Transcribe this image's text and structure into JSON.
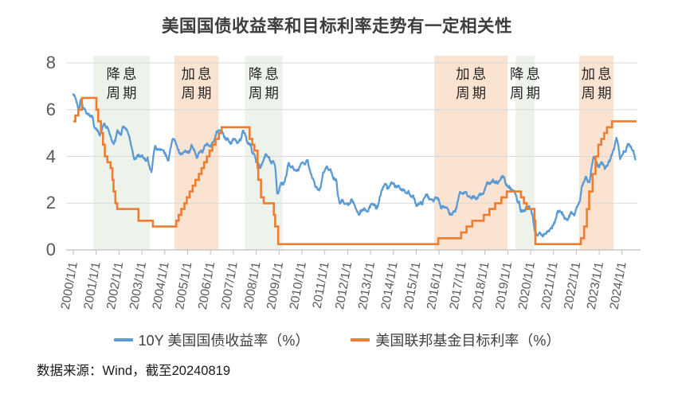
{
  "title": "美国国债收益率和目标利率走势有一定相关性",
  "source_note": "数据来源：Wind，截至20240819",
  "colors": {
    "treasury_line": "#5B9BD5",
    "target_rate_line": "#ED7D31",
    "cut_band": "#EDF2EA",
    "hike_band": "#FBE3D1",
    "grid": "#d9d9d9",
    "axis": "#bfbfbf",
    "tick_label": "#595959",
    "band_label": "#262626"
  },
  "chart_data": {
    "type": "line",
    "title": "美国国债收益率和目标利率走势有一定相关性",
    "xlabel": "",
    "ylabel": "",
    "ylim": [
      0,
      8
    ],
    "y_ticks": [
      0,
      2,
      4,
      6,
      8
    ],
    "x_ticklabels": [
      "2000/1/1",
      "2001/1/1",
      "2002/1/1",
      "2003/1/1",
      "2004/1/1",
      "2005/1/1",
      "2006/1/1",
      "2007/1/1",
      "2008/1/1",
      "2009/1/1",
      "2010/1/1",
      "2011/1/1",
      "2012/1/1",
      "2013/1/1",
      "2014/1/1",
      "2015/1/1",
      "2016/1/1",
      "2017/1/1",
      "2018/1/1",
      "2019/1/1",
      "2020/1/1",
      "2021/1/1",
      "2022/1/1",
      "2023/1/1",
      "2024/1/1"
    ],
    "grid": "horizontal",
    "legend_position": "bottom",
    "bands": [
      {
        "kind": "cut",
        "lines": [
          "降息",
          "周期"
        ],
        "start": 2000.87,
        "end": 2003.35
      },
      {
        "kind": "hike",
        "lines": [
          "加息",
          "周期"
        ],
        "start": 2004.42,
        "end": 2006.35
      },
      {
        "kind": "cut",
        "lines": [
          "降息",
          "周期"
        ],
        "start": 2007.5,
        "end": 2009.15
      },
      {
        "kind": "hike",
        "lines": [
          "加息",
          "周期"
        ],
        "start": 2015.79,
        "end": 2018.99
      },
      {
        "kind": "cut",
        "lines": [
          "降息",
          "周期"
        ],
        "start": 2019.34,
        "end": 2020.17
      },
      {
        "kind": "hike",
        "lines": [
          "加息",
          "周期"
        ],
        "start": 2022.13,
        "end": 2023.63
      }
    ],
    "series": [
      {
        "name": "10Y 美国国债收益率（%）",
        "color": "#5B9BD5",
        "style": "noisy-line",
        "start_year": 2000,
        "interval": "monthly",
        "values": [
          6.66,
          6.52,
          6.26,
          6.0,
          6.44,
          6.1,
          6.05,
          5.83,
          5.8,
          5.74,
          5.72,
          5.24,
          5.16,
          5.1,
          4.89,
          5.14,
          5.39,
          5.28,
          5.24,
          4.97,
          4.73,
          4.57,
          4.65,
          5.09,
          5.04,
          4.91,
          5.28,
          5.21,
          5.16,
          4.93,
          4.65,
          4.26,
          3.87,
          3.94,
          4.05,
          4.03,
          4.05,
          3.9,
          3.81,
          3.96,
          3.57,
          3.33,
          3.98,
          4.45,
          4.27,
          4.29,
          4.3,
          4.27,
          4.15,
          3.97,
          3.83,
          4.35,
          4.72,
          4.73,
          4.5,
          4.28,
          4.13,
          4.1,
          4.19,
          4.23,
          4.22,
          4.17,
          4.5,
          4.34,
          4.14,
          3.94,
          4.18,
          4.26,
          4.2,
          4.46,
          4.54,
          4.47,
          4.42,
          4.57,
          4.72,
          4.99,
          5.11,
          5.11,
          5.09,
          4.88,
          4.72,
          4.73,
          4.6,
          4.56,
          4.76,
          4.72,
          4.56,
          4.69,
          4.75,
          5.1,
          5.0,
          4.67,
          4.52,
          4.53,
          4.15,
          4.1,
          3.74,
          3.74,
          3.51,
          3.68,
          3.88,
          4.1,
          3.99,
          3.89,
          3.69,
          3.81,
          3.53,
          2.42,
          2.52,
          2.87,
          2.82,
          2.93,
          3.29,
          3.72,
          3.56,
          3.59,
          3.4,
          3.39,
          3.4,
          3.59,
          3.73,
          3.69,
          3.73,
          3.85,
          3.42,
          3.2,
          3.01,
          2.7,
          2.65,
          2.54,
          2.76,
          3.29,
          3.39,
          3.58,
          3.41,
          3.46,
          3.17,
          3.0,
          3.0,
          2.3,
          1.98,
          2.15,
          2.01,
          1.98,
          1.97,
          1.97,
          2.17,
          2.05,
          1.8,
          1.62,
          1.53,
          1.68,
          1.72,
          1.75,
          1.65,
          1.72,
          1.91,
          1.98,
          1.96,
          1.76,
          1.93,
          2.3,
          2.58,
          2.74,
          2.81,
          2.62,
          2.72,
          2.9,
          2.86,
          2.71,
          2.72,
          2.71,
          2.56,
          2.6,
          2.54,
          2.42,
          2.53,
          2.3,
          2.33,
          2.21,
          1.88,
          1.98,
          2.04,
          1.94,
          2.2,
          2.36,
          2.32,
          2.17,
          2.17,
          2.07,
          2.26,
          2.24,
          2.09,
          1.78,
          1.89,
          1.81,
          1.81,
          1.64,
          1.5,
          1.56,
          1.63,
          1.76,
          2.14,
          2.49,
          2.43,
          2.42,
          2.48,
          2.3,
          2.3,
          2.19,
          2.32,
          2.21,
          2.2,
          2.36,
          2.35,
          2.4,
          2.58,
          2.86,
          2.84,
          2.87,
          2.98,
          2.91,
          2.89,
          2.89,
          3.0,
          3.15,
          3.12,
          2.83,
          2.71,
          2.68,
          2.57,
          2.53,
          2.4,
          2.07,
          2.07,
          1.63,
          1.7,
          1.71,
          1.81,
          1.86,
          1.76,
          1.5,
          0.87,
          0.66,
          0.67,
          0.73,
          0.62,
          0.65,
          0.68,
          0.79,
          0.87,
          0.93,
          1.08,
          1.26,
          1.61,
          1.64,
          1.62,
          1.52,
          1.32,
          1.28,
          1.37,
          1.58,
          1.56,
          1.47,
          1.76,
          1.93,
          2.13,
          2.75,
          2.9,
          3.14,
          2.9,
          2.9,
          3.52,
          3.98,
          3.89,
          3.62,
          3.53,
          3.75,
          3.66,
          3.46,
          3.57,
          3.75,
          3.9,
          4.17,
          4.38,
          4.8,
          4.5,
          3.88,
          4.06,
          4.21,
          4.21,
          4.54,
          4.48,
          4.31,
          4.25,
          3.87
        ]
      },
      {
        "name": "美国联邦基金目标利率（%）",
        "color": "#ED7D31",
        "style": "step",
        "points": [
          [
            2000.0,
            5.5
          ],
          [
            2000.09,
            5.75
          ],
          [
            2000.22,
            6.0
          ],
          [
            2000.38,
            6.5
          ],
          [
            2001.01,
            6.0
          ],
          [
            2001.09,
            5.5
          ],
          [
            2001.21,
            5.0
          ],
          [
            2001.3,
            4.5
          ],
          [
            2001.38,
            4.0
          ],
          [
            2001.49,
            3.75
          ],
          [
            2001.63,
            3.5
          ],
          [
            2001.71,
            3.0
          ],
          [
            2001.76,
            2.5
          ],
          [
            2001.84,
            2.0
          ],
          [
            2001.92,
            1.75
          ],
          [
            2002.85,
            1.25
          ],
          [
            2003.48,
            1.0
          ],
          [
            2004.5,
            1.25
          ],
          [
            2004.61,
            1.5
          ],
          [
            2004.72,
            1.75
          ],
          [
            2004.86,
            2.0
          ],
          [
            2004.96,
            2.25
          ],
          [
            2005.09,
            2.5
          ],
          [
            2005.22,
            2.75
          ],
          [
            2005.34,
            3.0
          ],
          [
            2005.49,
            3.25
          ],
          [
            2005.61,
            3.5
          ],
          [
            2005.72,
            3.75
          ],
          [
            2005.84,
            4.0
          ],
          [
            2005.96,
            4.25
          ],
          [
            2006.08,
            4.5
          ],
          [
            2006.22,
            4.75
          ],
          [
            2006.37,
            5.0
          ],
          [
            2006.49,
            5.25
          ],
          [
            2007.71,
            4.75
          ],
          [
            2007.83,
            4.5
          ],
          [
            2007.92,
            4.25
          ],
          [
            2008.06,
            3.5
          ],
          [
            2008.09,
            3.0
          ],
          [
            2008.21,
            2.25
          ],
          [
            2008.33,
            2.0
          ],
          [
            2008.77,
            1.5
          ],
          [
            2008.83,
            1.0
          ],
          [
            2008.96,
            0.25
          ],
          [
            2015.96,
            0.5
          ],
          [
            2016.96,
            0.75
          ],
          [
            2017.2,
            1.0
          ],
          [
            2017.45,
            1.25
          ],
          [
            2017.95,
            1.5
          ],
          [
            2018.2,
            1.75
          ],
          [
            2018.45,
            2.0
          ],
          [
            2018.72,
            2.25
          ],
          [
            2018.96,
            2.5
          ],
          [
            2019.58,
            2.25
          ],
          [
            2019.71,
            2.0
          ],
          [
            2019.83,
            1.75
          ],
          [
            2020.17,
            1.25
          ],
          [
            2020.21,
            0.25
          ],
          [
            2022.2,
            0.5
          ],
          [
            2022.34,
            1.0
          ],
          [
            2022.46,
            1.75
          ],
          [
            2022.56,
            2.5
          ],
          [
            2022.71,
            3.25
          ],
          [
            2022.84,
            4.0
          ],
          [
            2022.96,
            4.5
          ],
          [
            2023.09,
            4.75
          ],
          [
            2023.22,
            5.0
          ],
          [
            2023.34,
            5.25
          ],
          [
            2023.56,
            5.5
          ],
          [
            2024.63,
            5.5
          ]
        ]
      }
    ],
    "legend": [
      "10Y 美国国债收益率（%）",
      "美国联邦基金目标利率（%）"
    ]
  }
}
